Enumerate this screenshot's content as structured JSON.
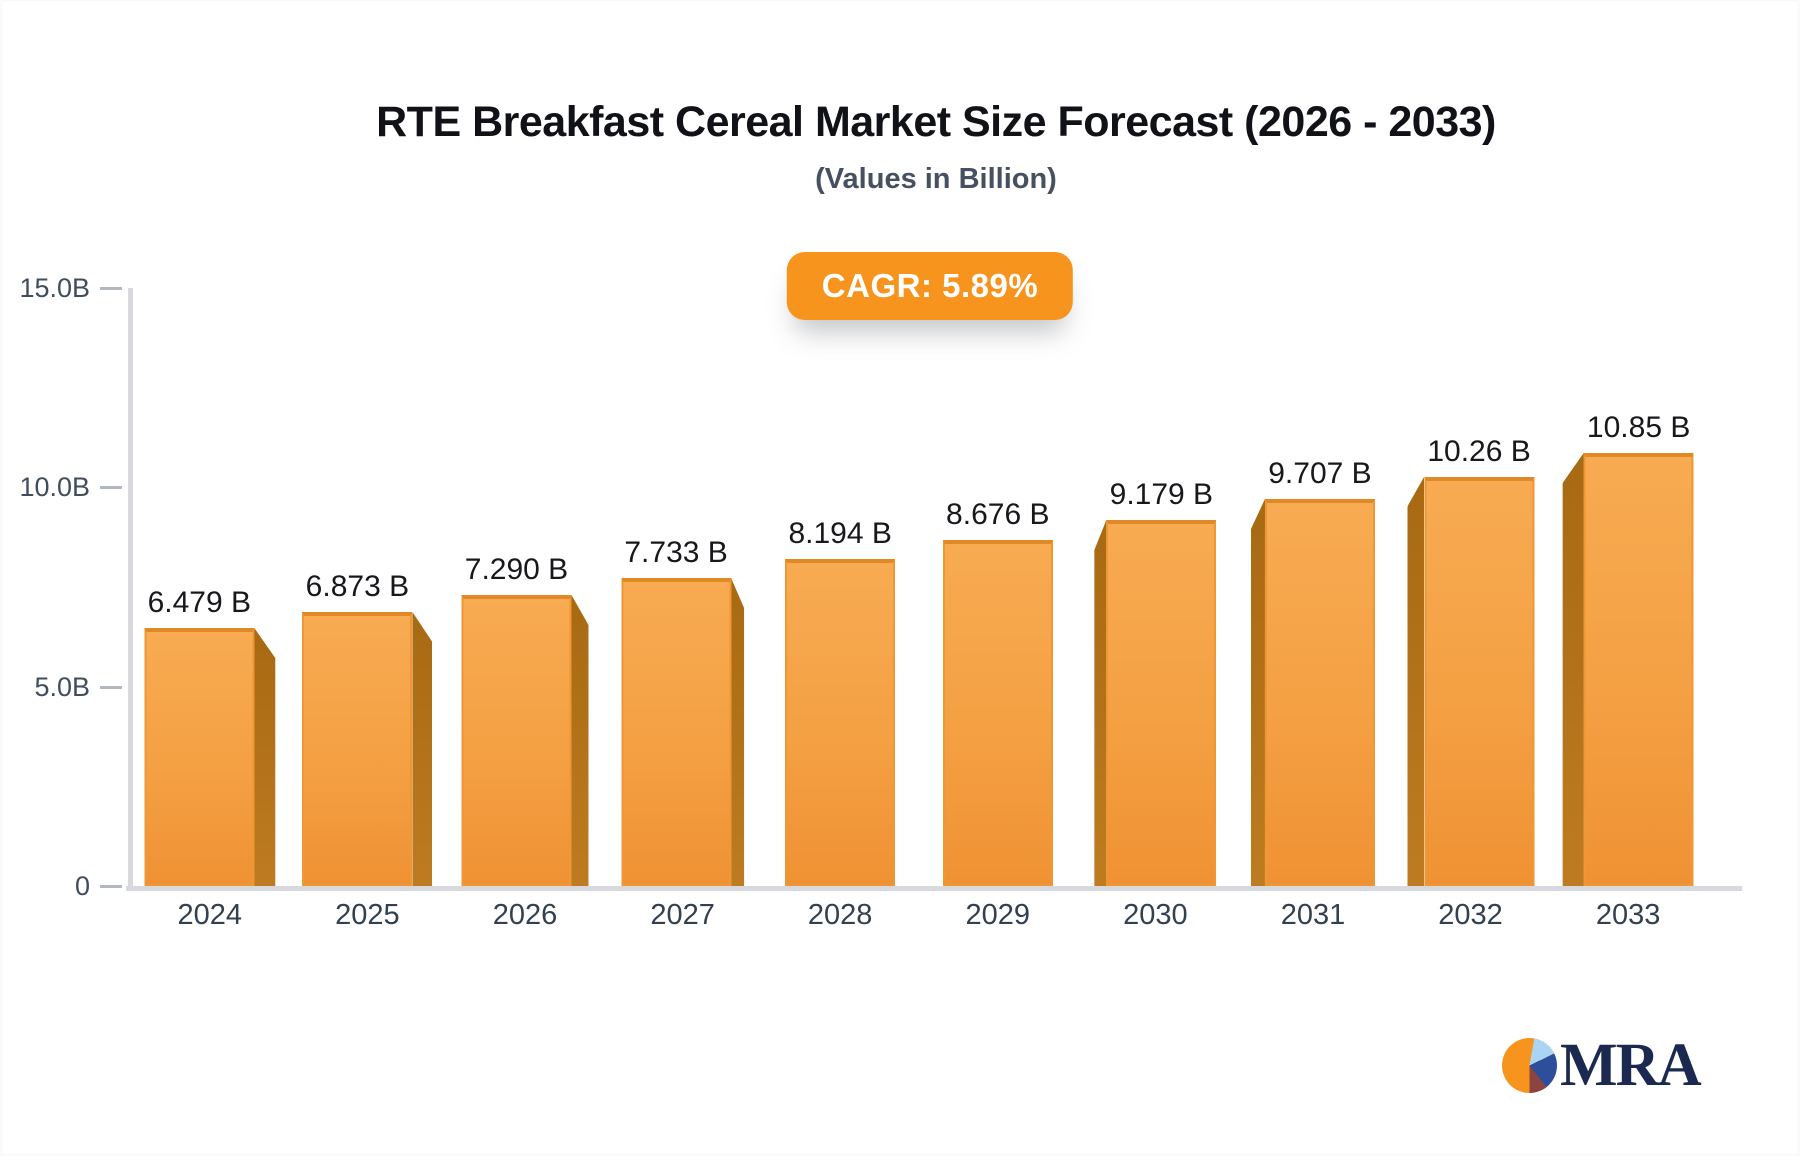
{
  "page": {
    "title": "RTE Breakfast Cereal Market Size Forecast (2026 - 2033)",
    "subtitle": "(Values in Billion)",
    "cagr_badge": "CAGR: 5.89%"
  },
  "chart_data": {
    "type": "bar",
    "title": "RTE Breakfast Cereal Market Size Forecast (2026 - 2033)",
    "subtitle": "(Values in Billion)",
    "annotation": "CAGR: 5.89%",
    "categories": [
      "2024",
      "2025",
      "2026",
      "2027",
      "2028",
      "2029",
      "2030",
      "2031",
      "2032",
      "2033"
    ],
    "values": [
      6.479,
      6.873,
      7.29,
      7.733,
      8.194,
      8.676,
      9.179,
      9.707,
      10.26,
      10.85
    ],
    "value_labels": [
      "6.479 B",
      "6.873 B",
      "7.290 B",
      "7.733 B",
      "8.194 B",
      "8.676 B",
      "9.179 B",
      "9.707 B",
      "10.26 B",
      "10.85 B"
    ],
    "xlabel": "",
    "ylabel": "",
    "ylim": [
      0,
      15
    ],
    "y_ticks": [
      {
        "label": "15.0B",
        "value": 15
      },
      {
        "label": "10.0B",
        "value": 10
      },
      {
        "label": "5.0B",
        "value": 5
      },
      {
        "label": "0",
        "value": 0
      }
    ],
    "grid": false,
    "legend": false,
    "bar_color": "#F5A041",
    "bar_side_color": "#B5731C",
    "accent_color": "#F7941E"
  },
  "logo": {
    "text": "MRA",
    "text_color": "#1B2850",
    "pie_colors": [
      "#F7941E",
      "#ABD3F2",
      "#2D4E9B",
      "#8E443E"
    ]
  }
}
